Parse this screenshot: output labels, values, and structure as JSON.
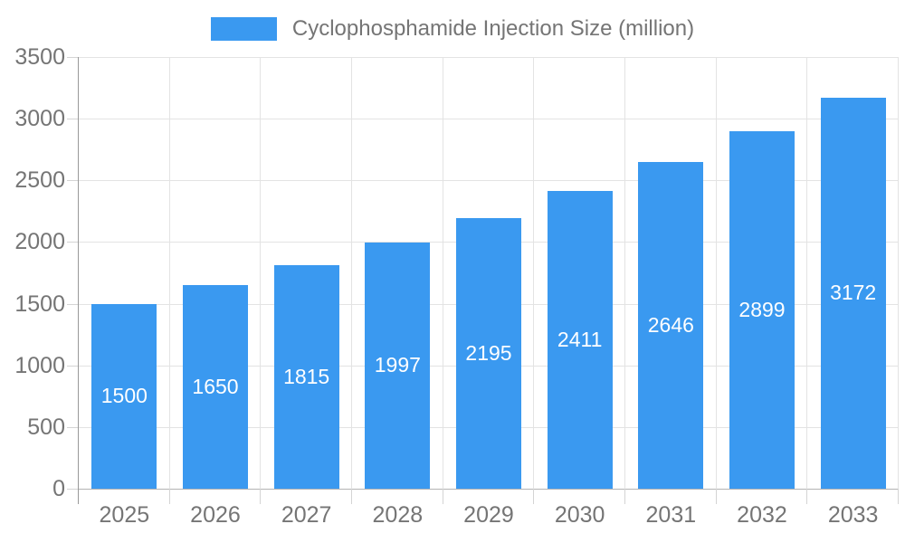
{
  "chart_data": {
    "type": "bar",
    "title": "Cyclophosphamide Injection Size (million)",
    "categories": [
      "2025",
      "2026",
      "2027",
      "2028",
      "2029",
      "2030",
      "2031",
      "2032",
      "2033"
    ],
    "values": [
      1500,
      1650,
      1815,
      1997,
      2195,
      2411,
      2646,
      2899,
      3172
    ],
    "xlabel": "",
    "ylabel": "",
    "ylim": [
      0,
      3500
    ],
    "ytick_step": 500,
    "yticks": [
      0,
      500,
      1000,
      1500,
      2000,
      2500,
      3000,
      3500
    ],
    "grid": true,
    "legend_position": "top",
    "bar_value_labels_visible": true,
    "bar_value_label_position": "center"
  },
  "legend": {
    "label": "Cyclophosphamide Injection Size (million)"
  },
  "colors": {
    "bar": "#3A99F0",
    "bar_label": "#FFFFFF",
    "axis_text": "#757575",
    "legend_text": "#757575",
    "gridline": "#E3E3E3",
    "tick": "#D4D4D4",
    "y_axis_line": "#999999",
    "x_axis_line": "#B3B3B3"
  }
}
